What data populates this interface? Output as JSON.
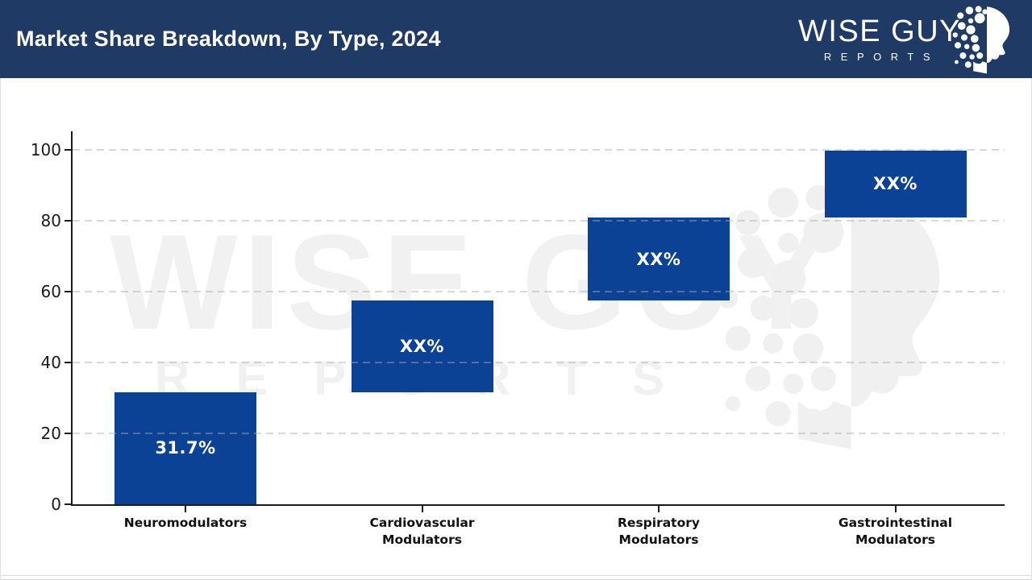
{
  "header": {
    "title": "Market Share Breakdown, By Type, 2024",
    "bg_color": "#203a66",
    "text_color": "#ffffff",
    "logo": {
      "line1": "WISE GUY",
      "line2": "REPORTS"
    }
  },
  "watermark": {
    "line1": "WISE GUY",
    "line2": "REPORTS"
  },
  "chart_data": {
    "type": "bar",
    "subtype": "waterfall",
    "title": "Market Share Breakdown, By Type, 2024",
    "xlabel": "",
    "ylabel": "",
    "yticks": [
      0,
      20,
      40,
      60,
      80,
      100
    ],
    "ylim": [
      0,
      105
    ],
    "grid": true,
    "legend": false,
    "bar_color": "#0b4296",
    "bar_label_color": "#ffffff",
    "axis_color": "#1a1a1a",
    "categories": [
      "Neuromodulators",
      "Cardiovascular Modulators",
      "Respiratory Modulators",
      "Gastrointestinal Modulators"
    ],
    "bars": [
      {
        "category": "Neuromodulators",
        "category_lines": [
          "Neuromodulators"
        ],
        "start": 0,
        "end": 31.7,
        "value": 31.7,
        "label": "31.7%"
      },
      {
        "category": "Cardiovascular Modulators",
        "category_lines": [
          "Cardiovascular",
          "Modulators"
        ],
        "start": 31.7,
        "end": 57.5,
        "value": 25.8,
        "label": "XX%"
      },
      {
        "category": "Respiratory Modulators",
        "category_lines": [
          "Respiratory",
          "Modulators"
        ],
        "start": 57.5,
        "end": 80.9,
        "value": 23.4,
        "label": "XX%"
      },
      {
        "category": "Gastrointestinal Modulators",
        "category_lines": [
          "Gastrointestinal",
          "Modulators"
        ],
        "start": 80.9,
        "end": 99.8,
        "value": 18.9,
        "label": "XX%"
      }
    ]
  }
}
